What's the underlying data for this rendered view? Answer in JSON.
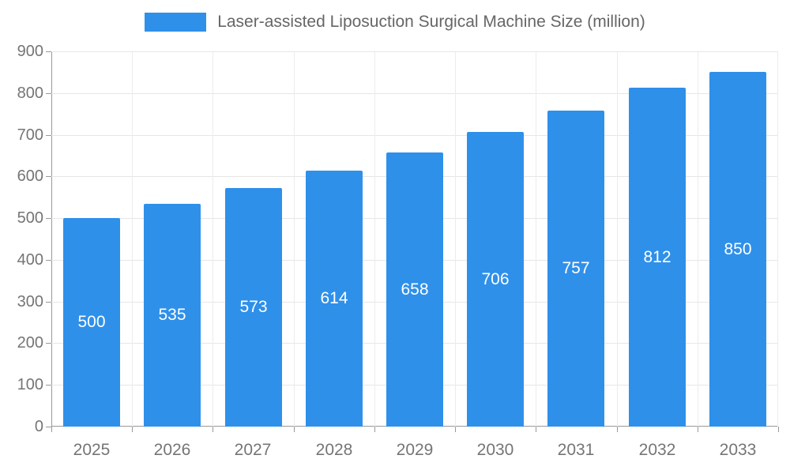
{
  "legend": {
    "label": "Laser-assisted Liposuction Surgical Machine Size (million)"
  },
  "chart_data": {
    "type": "bar",
    "title": "Laser-assisted Liposuction Surgical Machine Size (million)",
    "categories": [
      "2025",
      "2026",
      "2027",
      "2028",
      "2029",
      "2030",
      "2031",
      "2032",
      "2033"
    ],
    "values": [
      500,
      535,
      573,
      614,
      658,
      706,
      757,
      812,
      850
    ],
    "xlabel": "",
    "ylabel": "",
    "ylim": [
      0,
      900
    ],
    "ytick_step": 100,
    "grid": true,
    "legend_position": "top",
    "bar_color": "#2F90EA",
    "value_label_color": "#ffffff",
    "axis_text_color": "#757575"
  }
}
